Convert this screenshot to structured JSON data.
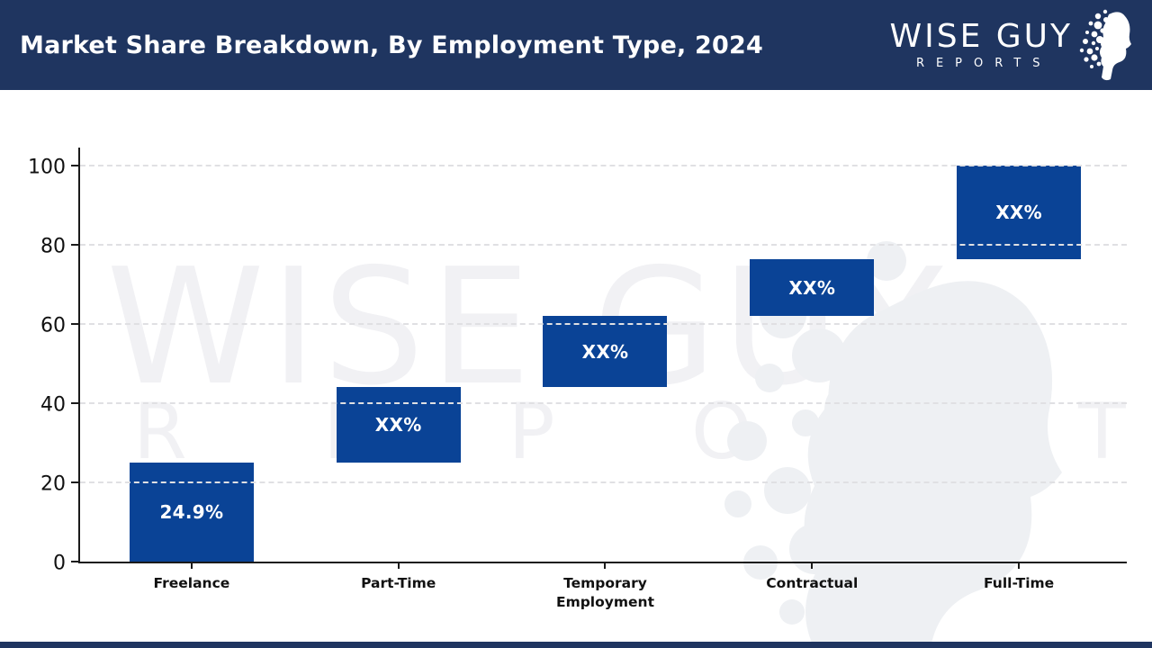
{
  "header": {
    "title": "Market Share Breakdown, By Employment Type, 2024",
    "logo": {
      "line1": "WISE GUY",
      "line2": "REPORTS"
    }
  },
  "watermark": {
    "line1": "WISE GUY",
    "line2": "R E P O R T S"
  },
  "colors": {
    "header_bg": "#1f3560",
    "bar_fill": "#0a4396",
    "bar_label": "#ffffff",
    "grid": "#e0e0e3",
    "axis": "#1a1a1a",
    "watermark": "#f1f1f4"
  },
  "chart_data": {
    "type": "bar",
    "subtype": "waterfall",
    "title": "Market Share Breakdown, By Employment Type, 2024",
    "xlabel": "",
    "ylabel": "",
    "ylim": [
      0,
      100
    ],
    "yticks": [
      0,
      20,
      40,
      60,
      80,
      100
    ],
    "grid": "horizontal-dashed",
    "legend": "none",
    "categories": [
      "Freelance",
      "Part-Time",
      "Temporary\nEmployment",
      "Contractual",
      "Full-Time"
    ],
    "bars": [
      {
        "category": "Freelance",
        "start": 0,
        "end": 24.9,
        "label": "24.9%"
      },
      {
        "category": "Part-Time",
        "start": 24.9,
        "end": 44.0,
        "label": "XX%"
      },
      {
        "category": "Temporary\nEmployment",
        "start": 44.0,
        "end": 62.0,
        "label": "XX%"
      },
      {
        "category": "Contractual",
        "start": 62.0,
        "end": 76.3,
        "label": "XX%"
      },
      {
        "category": "Full-Time",
        "start": 76.3,
        "end": 100.0,
        "label": "XX%"
      }
    ]
  }
}
